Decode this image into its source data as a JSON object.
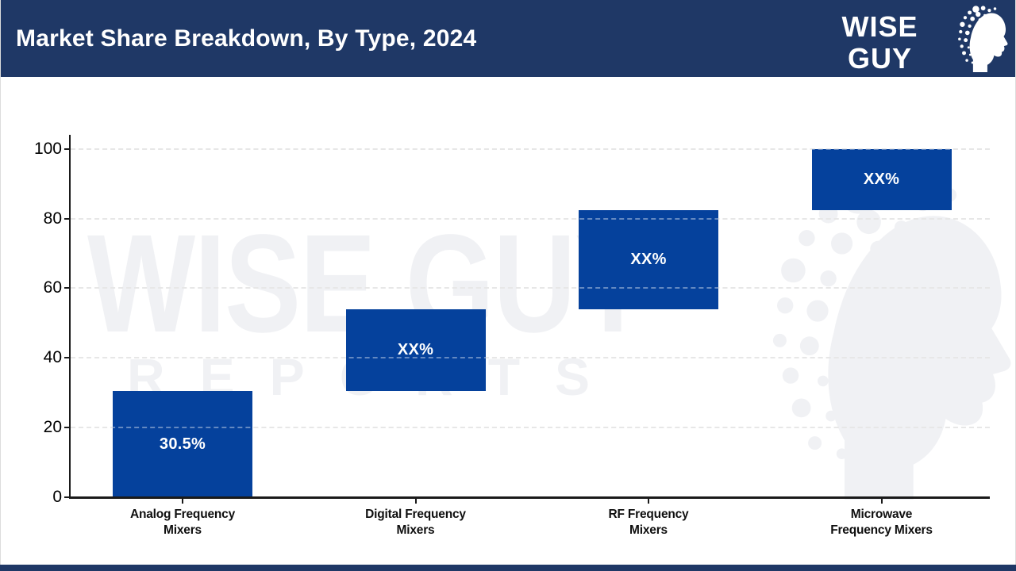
{
  "header": {
    "title": "Market Share Breakdown, By Type, 2024",
    "logo": {
      "brand": "WISE GUY",
      "sub": "REPORTS"
    }
  },
  "watermark": {
    "brand": "WISE GUY",
    "sub": "REPORTS"
  },
  "colors": {
    "header_bg": "#1f3866",
    "footer_bg": "#1f3866",
    "bar": "#05419c",
    "grid": "#d8d8d8",
    "axis": "#1a1a1a",
    "watermark": "#f0f1f4",
    "bar_label": "#ffffff",
    "tick_label": "#000000"
  },
  "chart_data": {
    "type": "bar",
    "subtype": "floating-waterfall",
    "title": "Market Share Breakdown, By Type, 2024",
    "categories": [
      "Analog Frequency Mixers",
      "Digital Frequency Mixers",
      "RF Frequency Mixers",
      "Microwave Frequency Mixers"
    ],
    "category_lines": [
      [
        "Analog Frequency",
        "Mixers"
      ],
      [
        "Digital Frequency",
        "Mixers"
      ],
      [
        "RF Frequency",
        "Mixers"
      ],
      [
        "Microwave",
        "Frequency Mixers"
      ]
    ],
    "segments": [
      {
        "category": "Analog Frequency Mixers",
        "start": 0,
        "end": 30.5,
        "label": "30.5%"
      },
      {
        "category": "Digital Frequency Mixers",
        "start": 30.5,
        "end": 54,
        "label": "XX%"
      },
      {
        "category": "RF Frequency Mixers",
        "start": 54,
        "end": 82.5,
        "label": "XX%"
      },
      {
        "category": "Microwave Frequency Mixers",
        "start": 82.5,
        "end": 100,
        "label": "XX%"
      }
    ],
    "y_ticks": [
      0,
      20,
      40,
      60,
      80,
      100
    ],
    "ylim": [
      0,
      105
    ],
    "xlabel": "",
    "ylabel": "",
    "grid": "horizontal-dashed",
    "legend": "none",
    "bar_color": "#05419c"
  }
}
